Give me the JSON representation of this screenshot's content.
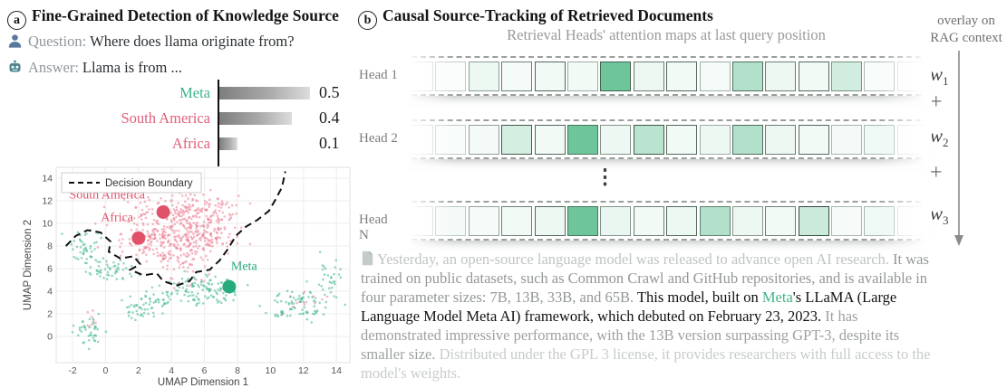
{
  "panel_a": {
    "badge": "a",
    "title": "Fine-Grained Detection of Knowledge Source",
    "question_label": "Question:",
    "question_text": "Where does llama originate from?",
    "answer_label": "Answer:",
    "answer_text": "Llama is from ..."
  },
  "panel_b": {
    "badge": "b",
    "title": "Causal Source-Tracking of Retrieved Documents",
    "subtitle": "Retrieval Heads' attention maps at last query position",
    "overlay_note_line1": "overlay on",
    "overlay_note_line2": "RAG context",
    "plus_sign": "+",
    "weights": [
      {
        "base": "w",
        "sub": "1"
      },
      {
        "base": "w",
        "sub": "2"
      },
      {
        "base": "w",
        "sub": "3"
      }
    ],
    "ellipsis": "⋮",
    "heads": [
      {
        "label": "Head 1",
        "cells": [
          0.02,
          0.05,
          0.12,
          0.06,
          0.08,
          0.08,
          0.85,
          0.1,
          0.08,
          0.06,
          0.45,
          0.1,
          0.08,
          0.3,
          0.06,
          0.03
        ]
      },
      {
        "label": "Head 2",
        "cells": [
          0.03,
          0.06,
          0.08,
          0.25,
          0.08,
          0.85,
          0.1,
          0.4,
          0.08,
          0.1,
          0.45,
          0.1,
          0.08,
          0.08,
          0.15,
          0.04
        ]
      },
      {
        "label": "Head N",
        "cells": [
          0.03,
          0.1,
          0.06,
          0.08,
          0.1,
          0.85,
          0.12,
          0.08,
          0.1,
          0.45,
          0.1,
          0.08,
          0.3,
          0.06,
          0.15,
          0.04
        ]
      }
    ],
    "cell_green": "#56bb8a",
    "document_sentences": [
      {
        "segments": [
          {
            "text": "Yesterday, an open-source language model was released to advance open AI research. ",
            "color": "#bfc5c0"
          }
        ]
      },
      {
        "segments": [
          {
            "text": "It was trained on public datasets, such as Common Crawl and GitHub repositories, and is available in four parameter sizes: 7B, 13B, 33B, and 65B. ",
            "color": "#939994"
          }
        ]
      },
      {
        "segments": [
          {
            "text": "This model, built on ",
            "color": "#111111"
          },
          {
            "text": "Meta",
            "color": "#43b284"
          },
          {
            "text": "'s LLaMA (Large Language Model Meta AI) framework, which debuted on February 23, 2023. ",
            "color": "#111111"
          }
        ]
      },
      {
        "segments": [
          {
            "text": "It has demonstrated impressive performance, with the 13B version surpassing GPT-3, despite its smaller size. ",
            "color": "#9ca29d"
          }
        ]
      },
      {
        "segments": [
          {
            "text": "Distributed under the GPL 3 license, it provides researchers with full access to the model's weights.",
            "color": "#c7cdc8"
          }
        ]
      }
    ]
  },
  "chart_data": [
    {
      "type": "bar",
      "orientation": "horizontal",
      "categories": [
        "Meta",
        "South America",
        "Africa"
      ],
      "values": [
        0.5,
        0.4,
        0.1
      ],
      "value_labels": [
        "0.5",
        "0.4",
        "0.1"
      ],
      "category_colors": [
        "#3cb48c",
        "#e0607a",
        "#e0607a"
      ],
      "bar_style": "gray gradient fading right",
      "xlim": [
        0,
        0.6
      ]
    },
    {
      "type": "scatter",
      "xlabel": "UMAP Dimension 1",
      "ylabel": "UMAP Dimension 2",
      "xticks": [
        -2,
        0,
        2,
        4,
        6,
        8,
        10,
        12,
        14
      ],
      "yticks": [
        0,
        2,
        4,
        6,
        8,
        10,
        12,
        14
      ],
      "xlim": [
        -3.2,
        15
      ],
      "ylim": [
        -2.3,
        15
      ],
      "grid": true,
      "legend": [
        {
          "label": "Decision Boundary",
          "style": "black dashed line",
          "position": "upper left"
        }
      ],
      "point_colors": {
        "meta_class": "#3fb78d",
        "geo_class": "#ec7d92"
      },
      "highlight_points": [
        {
          "label": "South America",
          "x": 3.5,
          "y": 11.0,
          "color": "#e0526a",
          "label_x": 0.1,
          "label_y": 12.2
        },
        {
          "label": "Africa",
          "x": 2.0,
          "y": 8.7,
          "color": "#e0526a",
          "label_x": 0.7,
          "label_y": 10.2
        },
        {
          "label": "Meta",
          "x": 7.5,
          "y": 4.4,
          "color": "#27ab7c",
          "label_x": 8.4,
          "label_y": 5.9
        }
      ],
      "clusters": [
        {
          "class": "geo",
          "x": 4.2,
          "y": 9.8,
          "sx": 1.7,
          "sy": 1.3,
          "n": 260
        },
        {
          "class": "geo",
          "x": 3.0,
          "y": 8.3,
          "sx": 1.0,
          "sy": 0.8,
          "n": 80
        },
        {
          "class": "geo",
          "x": 5.8,
          "y": 8.6,
          "sx": 1.1,
          "sy": 0.9,
          "n": 90
        },
        {
          "class": "geo",
          "x": 5.0,
          "y": 11.6,
          "sx": 1.2,
          "sy": 0.7,
          "n": 60
        },
        {
          "class": "geo",
          "x": 4.6,
          "y": 6.6,
          "sx": 0.8,
          "sy": 0.7,
          "n": 40
        },
        {
          "class": "geo",
          "x": 6.8,
          "y": 10.6,
          "sx": 0.7,
          "sy": 0.8,
          "n": 35
        },
        {
          "class": "geo",
          "x": 12.2,
          "y": 3.2,
          "sx": 0.7,
          "sy": 0.5,
          "n": 12
        },
        {
          "class": "geo",
          "x": 5.0,
          "y": 4.8,
          "sx": 0.6,
          "sy": 0.4,
          "n": 10
        },
        {
          "class": "geo",
          "x": -0.9,
          "y": 1.4,
          "sx": 0.25,
          "sy": 0.5,
          "n": 8
        },
        {
          "class": "meta",
          "x": -1.3,
          "y": 7.7,
          "sx": 0.5,
          "sy": 0.7,
          "n": 45
        },
        {
          "class": "meta",
          "x": -0.3,
          "y": 6.2,
          "sx": 0.5,
          "sy": 0.5,
          "n": 25
        },
        {
          "class": "meta",
          "x": 0.8,
          "y": 5.6,
          "sx": 0.6,
          "sy": 0.5,
          "n": 25
        },
        {
          "class": "meta",
          "x": -0.9,
          "y": 0.6,
          "sx": 0.45,
          "sy": 0.8,
          "n": 40
        },
        {
          "class": "meta",
          "x": 2.3,
          "y": 2.7,
          "sx": 0.6,
          "sy": 0.5,
          "n": 30
        },
        {
          "class": "meta",
          "x": 3.3,
          "y": 3.4,
          "sx": 0.5,
          "sy": 0.4,
          "n": 18
        },
        {
          "class": "meta",
          "x": 4.6,
          "y": 4.0,
          "sx": 0.9,
          "sy": 0.5,
          "n": 35
        },
        {
          "class": "meta",
          "x": 6.3,
          "y": 4.6,
          "sx": 0.9,
          "sy": 0.6,
          "n": 45
        },
        {
          "class": "meta",
          "x": 5.6,
          "y": 3.4,
          "sx": 0.5,
          "sy": 0.4,
          "n": 15
        },
        {
          "class": "meta",
          "x": 7.2,
          "y": 3.6,
          "sx": 0.6,
          "sy": 0.4,
          "n": 20
        },
        {
          "class": "meta",
          "x": 12.0,
          "y": 3.0,
          "sx": 1.0,
          "sy": 0.8,
          "n": 70
        },
        {
          "class": "meta",
          "x": 13.6,
          "y": 5.5,
          "sx": 0.35,
          "sy": 0.9,
          "n": 25
        },
        {
          "class": "meta",
          "x": 10.8,
          "y": 1.8,
          "sx": 0.4,
          "sy": 0.4,
          "n": 12
        },
        {
          "class": "meta",
          "x": 1.5,
          "y": 1.9,
          "sx": 0.3,
          "sy": 0.3,
          "n": 10
        }
      ],
      "decision_boundary": [
        [
          -2.4,
          8.0
        ],
        [
          -1.8,
          8.9
        ],
        [
          -1.1,
          9.4
        ],
        [
          -0.3,
          9.2
        ],
        [
          0.3,
          8.4
        ],
        [
          0.2,
          7.5
        ],
        [
          0.9,
          6.9
        ],
        [
          1.7,
          7.1
        ],
        [
          2.1,
          6.4
        ],
        [
          1.5,
          5.9
        ],
        [
          2.3,
          5.4
        ],
        [
          3.1,
          5.6
        ],
        [
          3.5,
          4.9
        ],
        [
          4.3,
          4.5
        ],
        [
          5.1,
          4.9
        ],
        [
          5.5,
          5.7
        ],
        [
          6.3,
          5.9
        ],
        [
          6.9,
          6.7
        ],
        [
          7.4,
          7.7
        ],
        [
          7.9,
          8.9
        ],
        [
          8.5,
          9.7
        ],
        [
          9.2,
          10.3
        ],
        [
          9.9,
          11.1
        ],
        [
          10.3,
          12.1
        ],
        [
          10.7,
          13.2
        ],
        [
          10.9,
          14.6
        ]
      ]
    }
  ]
}
